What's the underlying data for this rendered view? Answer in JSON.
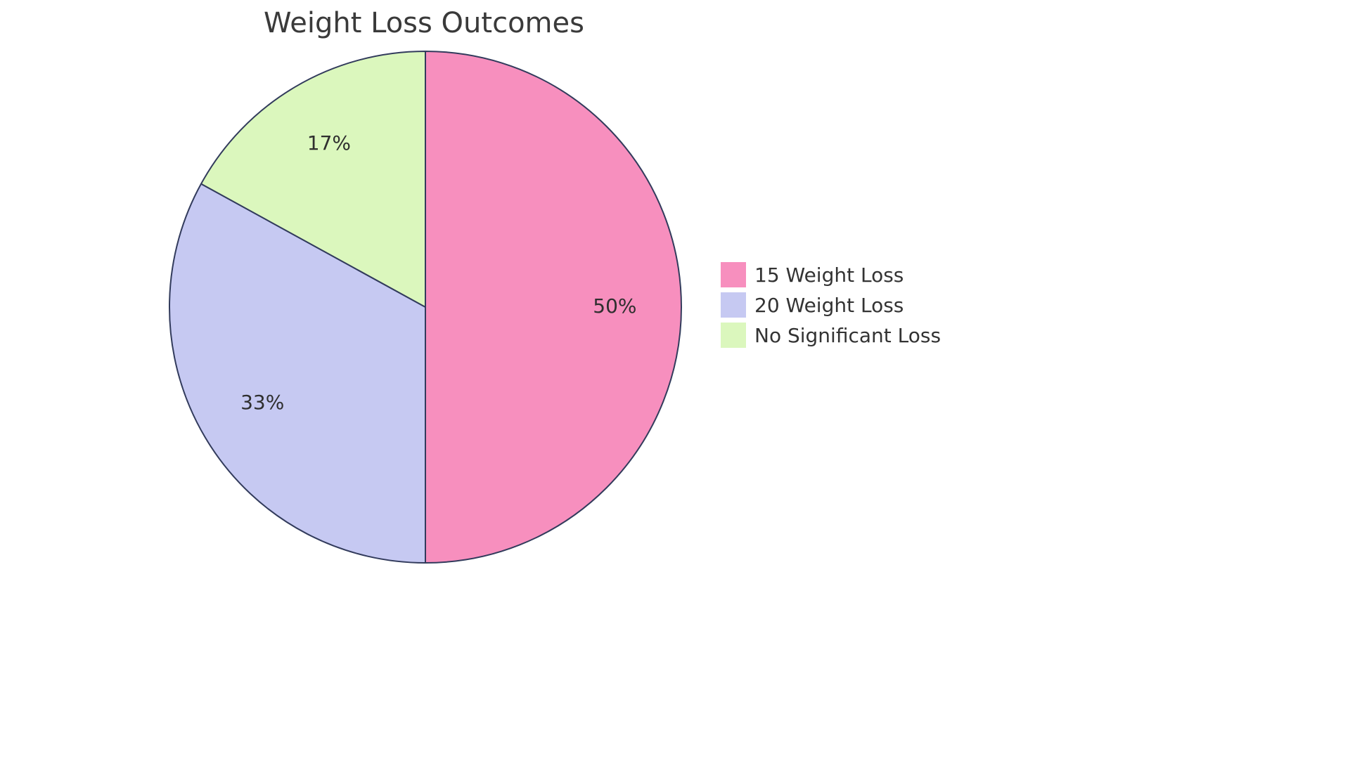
{
  "page": {
    "background_color": "#FFFFFF"
  },
  "chart_data": {
    "type": "pie",
    "title": "Weight Loss Outcomes",
    "slices": [
      {
        "label": "15 Weight Loss",
        "value": 50,
        "display": "50%",
        "color": "#F78FBE"
      },
      {
        "label": "20 Weight Loss",
        "value": 33,
        "display": "33%",
        "color": "#C6C9F2"
      },
      {
        "label": "No Significant Loss",
        "value": 17,
        "display": "17%",
        "color": "#DBF7BD"
      }
    ],
    "start_angle_deg": 0,
    "direction": "clockwise",
    "stroke_color": "#323B5C",
    "stroke_width": 2,
    "slice_label_color": "#2F2F2F",
    "legend_position": "right",
    "grid": false
  }
}
